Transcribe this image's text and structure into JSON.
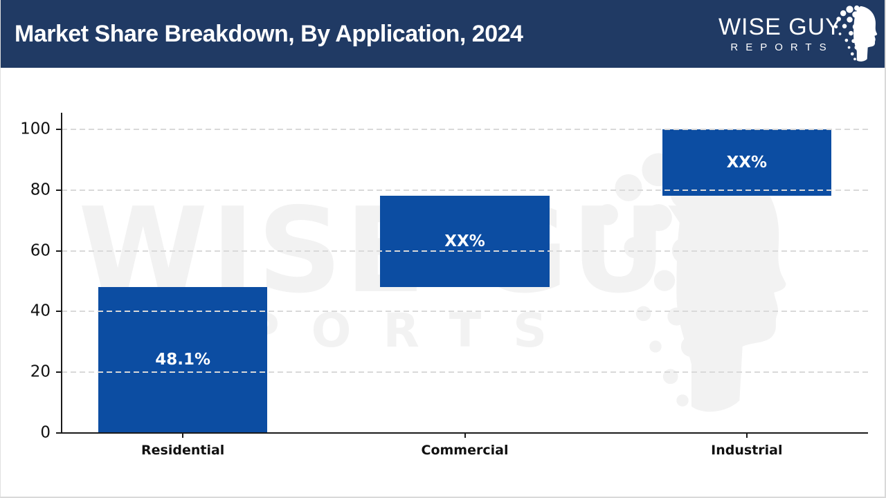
{
  "header": {
    "title": "Market Share Breakdown, By Application, 2024",
    "bg_color": "#203a64",
    "logo": {
      "line1": "WISE GUY",
      "line2": "REPORTS"
    }
  },
  "watermark": {
    "line1": "WISE GUY",
    "line2": "REPORTS"
  },
  "chart_data": {
    "type": "bar",
    "subtype": "waterfall-stacked-percent",
    "title": "Market Share Breakdown, By Application, 2024",
    "categories": [
      "Residential",
      "Commercial",
      "Industrial"
    ],
    "segments": [
      {
        "category": "Residential",
        "start": 0,
        "end": 48.1,
        "label": "48.1%"
      },
      {
        "category": "Commercial",
        "start": 48.1,
        "end": 78.1,
        "label": "XX%"
      },
      {
        "category": "Industrial",
        "start": 78.1,
        "end": 100,
        "label": "XX%"
      }
    ],
    "yticks": [
      0,
      20,
      40,
      60,
      80,
      100
    ],
    "ylim": [
      0,
      105.5
    ],
    "xlabel": "",
    "ylabel": "",
    "grid": "dashed-horizontal",
    "legend": "none",
    "bar_color": "#0c4da2",
    "bar_label_color": "#ffffff",
    "grid_color": "#d9d9d9",
    "axis_color": "#1a1a1a",
    "watermark_color": "#f2f2f2"
  }
}
